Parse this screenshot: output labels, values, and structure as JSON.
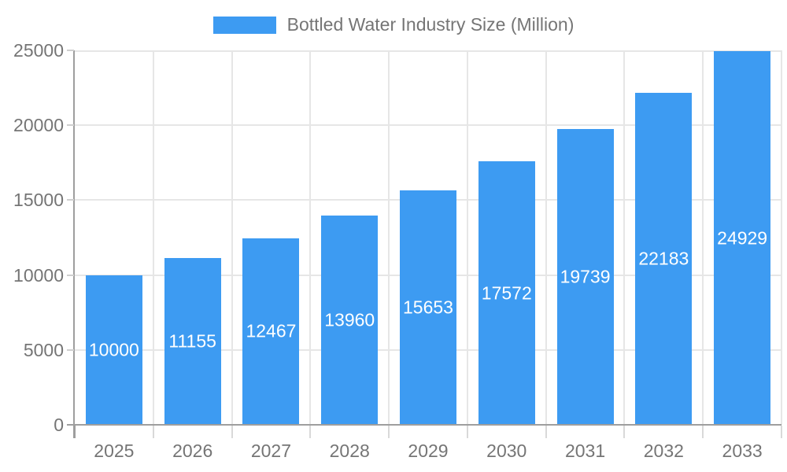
{
  "legend": {
    "label": "Bottled Water Industry Size (Million)"
  },
  "colors": {
    "bar": "#3d9bf2",
    "axis_line": "#9e9e9e",
    "gridline": "#e6e6e6",
    "axis_text": "#757575",
    "data_label": "#ffffff"
  },
  "chart_data": {
    "type": "bar",
    "title": "Bottled Water Industry Size (Million)",
    "categories": [
      "2025",
      "2026",
      "2027",
      "2028",
      "2029",
      "2030",
      "2031",
      "2032",
      "2033"
    ],
    "series": [
      {
        "name": "Bottled Water Industry Size (Million)",
        "values": [
          10000,
          11155,
          12467,
          13960,
          15653,
          17572,
          19739,
          22183,
          24929
        ]
      }
    ],
    "xlabel": "",
    "ylabel": "",
    "ylim": [
      0,
      25000
    ],
    "yticks": [
      0,
      5000,
      10000,
      15000,
      20000,
      25000
    ],
    "grid": true,
    "legend_position": "top-center",
    "data_labels": "inside-center-white"
  }
}
